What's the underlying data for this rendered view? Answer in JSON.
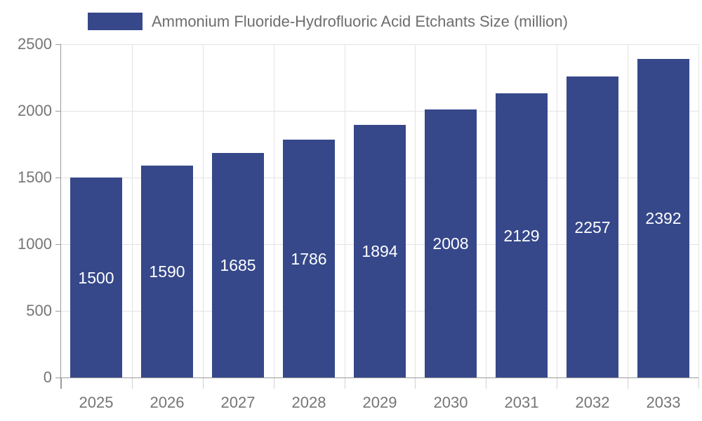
{
  "chart_data": {
    "type": "bar",
    "title": "Ammonium Fluoride-Hydrofluoric Acid Etchants Size (million)",
    "categories": [
      "2025",
      "2026",
      "2027",
      "2028",
      "2029",
      "2030",
      "2031",
      "2032",
      "2033"
    ],
    "values": [
      1500,
      1590,
      1685,
      1786,
      1894,
      2008,
      2129,
      2257,
      2392
    ],
    "xlabel": "",
    "ylabel": "",
    "ylim": [
      0,
      2500
    ],
    "yticks": [
      0,
      500,
      1000,
      1500,
      2000,
      2500
    ],
    "grid": true,
    "legend_position": "top",
    "bar_color": "#36488a",
    "value_label_color": "#ffffff",
    "axis_color": "#9a9a9a",
    "grid_color": "#e3e3e3",
    "minor_tick_color": "#d2d2d2",
    "tick_label_color": "#757575",
    "legend_text_color": "#6e6e6e"
  }
}
